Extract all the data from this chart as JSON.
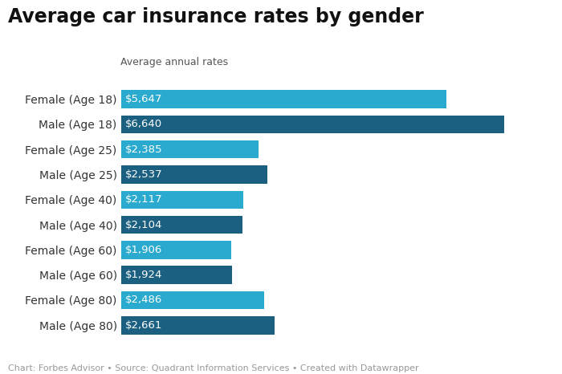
{
  "title": "Average car insurance rates by gender",
  "subtitle": "Average annual rates",
  "categories": [
    "Female (Age 18)",
    "Male (Age 18)",
    "Female (Age 25)",
    "Male (Age 25)",
    "Female (Age 40)",
    "Male (Age 40)",
    "Female (Age 60)",
    "Male (Age 60)",
    "Female (Age 80)",
    "Male (Age 80)"
  ],
  "values": [
    5647,
    6640,
    2385,
    2537,
    2117,
    2104,
    1906,
    1924,
    2486,
    2661
  ],
  "labels": [
    "$5,647",
    "$6,640",
    "$2,385",
    "$2,537",
    "$2,117",
    "$2,104",
    "$1,906",
    "$1,924",
    "$2,486",
    "$2,661"
  ],
  "bar_colors": [
    "#29aace",
    "#1b6080",
    "#29aace",
    "#1b6080",
    "#29aace",
    "#1b6080",
    "#29aace",
    "#1b6080",
    "#29aace",
    "#1b6080"
  ],
  "background_color": "#ffffff",
  "title_fontsize": 17,
  "subtitle_fontsize": 9,
  "label_fontsize": 9.5,
  "ytick_fontsize": 10,
  "footer_text": "Chart: Forbes Advisor • Source: Quadrant Information Services • Created with Datawrapper",
  "footer_fontsize": 8,
  "xlim": [
    0,
    7400
  ]
}
